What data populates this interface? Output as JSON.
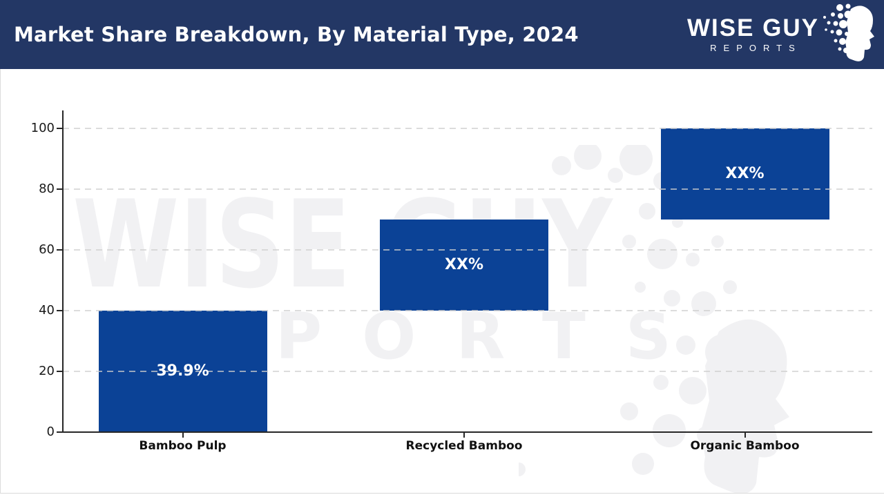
{
  "header": {
    "title": "Market Share Breakdown, By Material Type, 2024",
    "logo": {
      "line1": "WISE GUY",
      "line2": "REPORTS"
    }
  },
  "watermark": {
    "line1": "WISE GUY",
    "line2": "REPORTS"
  },
  "chart_data": {
    "type": "bar",
    "subtype": "waterfall-range-bars",
    "title": "Market Share Breakdown, By Material Type, 2024",
    "categories": [
      "Bamboo Pulp",
      "Recycled Bamboo",
      "Organic Bamboo"
    ],
    "bars": [
      {
        "category": "Bamboo Pulp",
        "start": 0,
        "end": 39.9,
        "label": "39.9%"
      },
      {
        "category": "Recycled Bamboo",
        "start": 40,
        "end": 70,
        "label": "XX%"
      },
      {
        "category": "Organic Bamboo",
        "start": 70,
        "end": 100,
        "label": "XX%"
      }
    ],
    "yticks": [
      0,
      20,
      40,
      60,
      80,
      100
    ],
    "ylim": [
      0,
      100
    ],
    "grid": true,
    "legend": false,
    "colors": {
      "bar": "#0b4296",
      "bar_label": "#ffffff",
      "grid": "#d8d8d8",
      "axis": "#262626",
      "tick_label": "#1a1a1a",
      "header_bg": "#233765",
      "watermark": "#f1f1f3"
    }
  }
}
